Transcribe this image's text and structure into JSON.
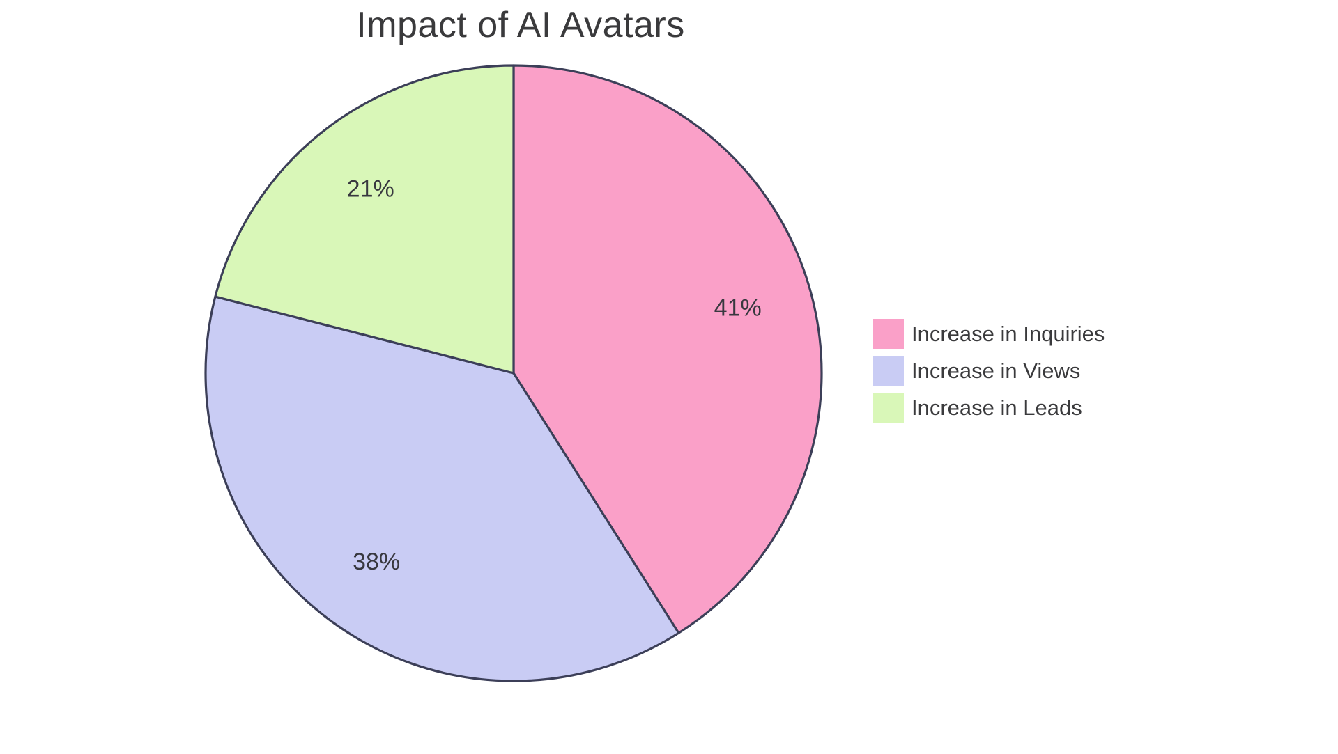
{
  "title": "Impact of AI Avatars",
  "colors": {
    "background": "#FFFFFF",
    "title_text": "#3A3A3C",
    "slice_label_text": "#38383F",
    "legend_text": "#3A3A3C",
    "pie_stroke": "#3C3F58"
  },
  "chart_data": {
    "type": "pie",
    "title": "Impact of AI Avatars",
    "start_angle": "12-oclock",
    "direction": "clockwise",
    "legend_position": "right",
    "grid": false,
    "slices": [
      {
        "label": "Increase in Inquiries",
        "value_pct": 41,
        "display": "41%",
        "color": "#FAA0C8"
      },
      {
        "label": "Increase in Views",
        "value_pct": 38,
        "display": "38%",
        "color": "#C9CCF4"
      },
      {
        "label": "Increase in Leads",
        "value_pct": 21,
        "display": "21%",
        "color": "#D9F7B8"
      }
    ]
  }
}
